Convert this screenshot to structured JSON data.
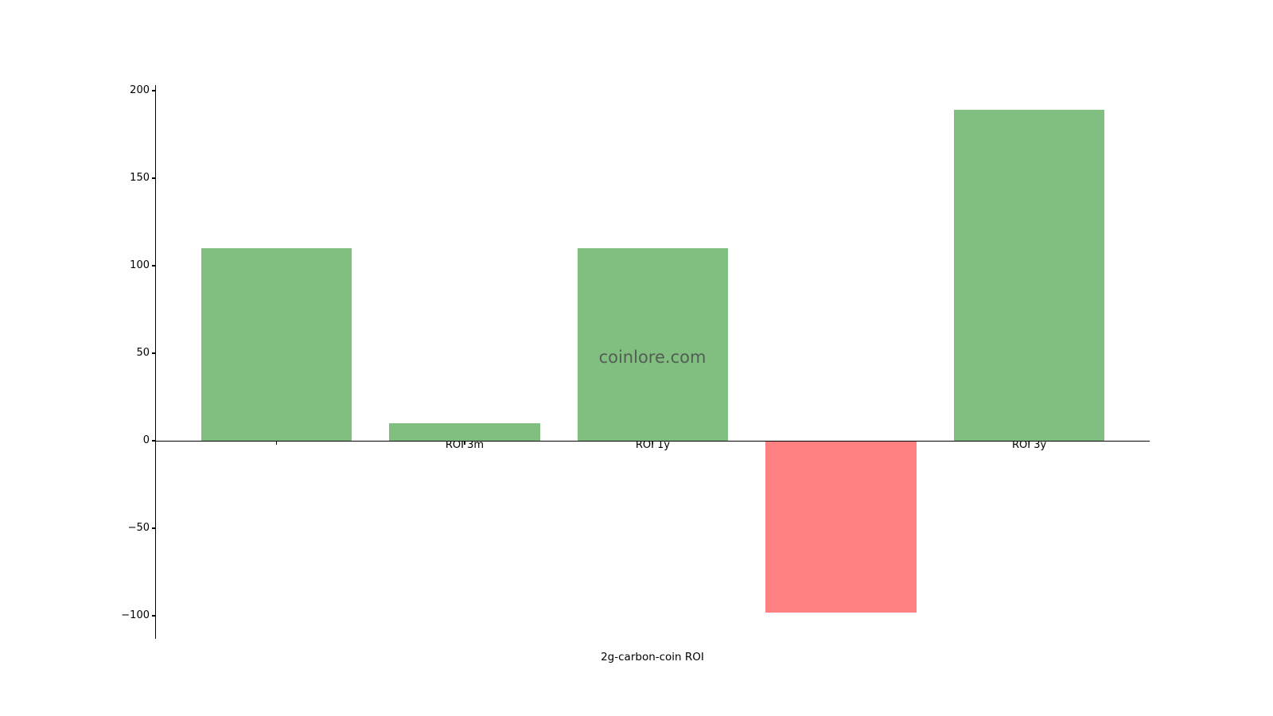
{
  "chart_data": {
    "type": "bar",
    "categories": [
      "",
      "ROI 3m",
      "ROI 1y",
      "",
      "ROI 3y"
    ],
    "values": [
      110,
      10,
      110,
      -98,
      189
    ],
    "series": [
      {
        "name": "ROI",
        "values": [
          110,
          10,
          110,
          -98,
          189
        ]
      }
    ],
    "title": "2g-carbon-coin ROI",
    "xlabel": "",
    "ylabel": "",
    "yticks": [
      200,
      150,
      100,
      50,
      0,
      -50,
      -100
    ],
    "ytick_labels": [
      "200",
      "150",
      "100",
      "50",
      "0",
      "−50",
      "−100"
    ],
    "ylim": [
      -113,
      203
    ],
    "grid": false,
    "legend_position": "none",
    "watermark": "coinlore.com",
    "colors": {
      "positive_bar": "#80bf80",
      "negative_bar": "#ff8080",
      "axis": "#000000",
      "text": "#000000",
      "watermark_text": "#4d4d4d"
    }
  }
}
